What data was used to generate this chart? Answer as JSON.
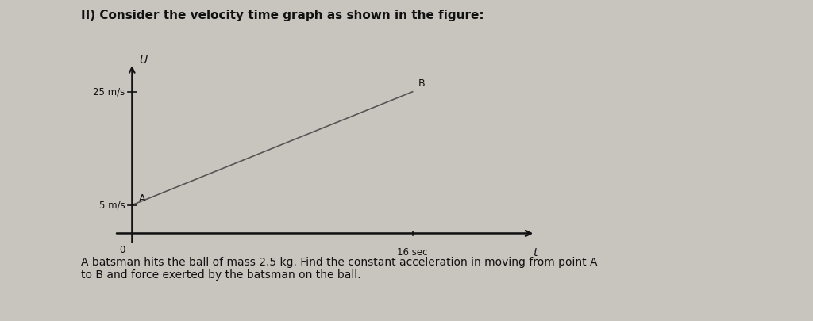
{
  "title": "II) Consider the velocity time graph as shown in the figure:",
  "title_fontsize": 11,
  "bg_color": "#c8c5bf",
  "point_A": [
    0,
    5
  ],
  "point_B": [
    16,
    25
  ],
  "y_label": "U",
  "x_label": "t",
  "y_tick_25_label": "25 m/s",
  "y_tick_5_label": "5 m/s",
  "x_tick_16_label": "16 sec",
  "origin_label": "0",
  "point_A_label": "A",
  "point_B_label": "B",
  "line_color": "#555555",
  "axis_color": "#111111",
  "text_color": "#111111",
  "footer_text": "A batsman hits the ball of mass 2.5 kg. Find the constant acceleration in moving from point A\nto B and force exerted by the batsman on the ball.",
  "footer_fontsize": 10,
  "ylim": [
    -3,
    31
  ],
  "xlim": [
    -1.5,
    24
  ]
}
